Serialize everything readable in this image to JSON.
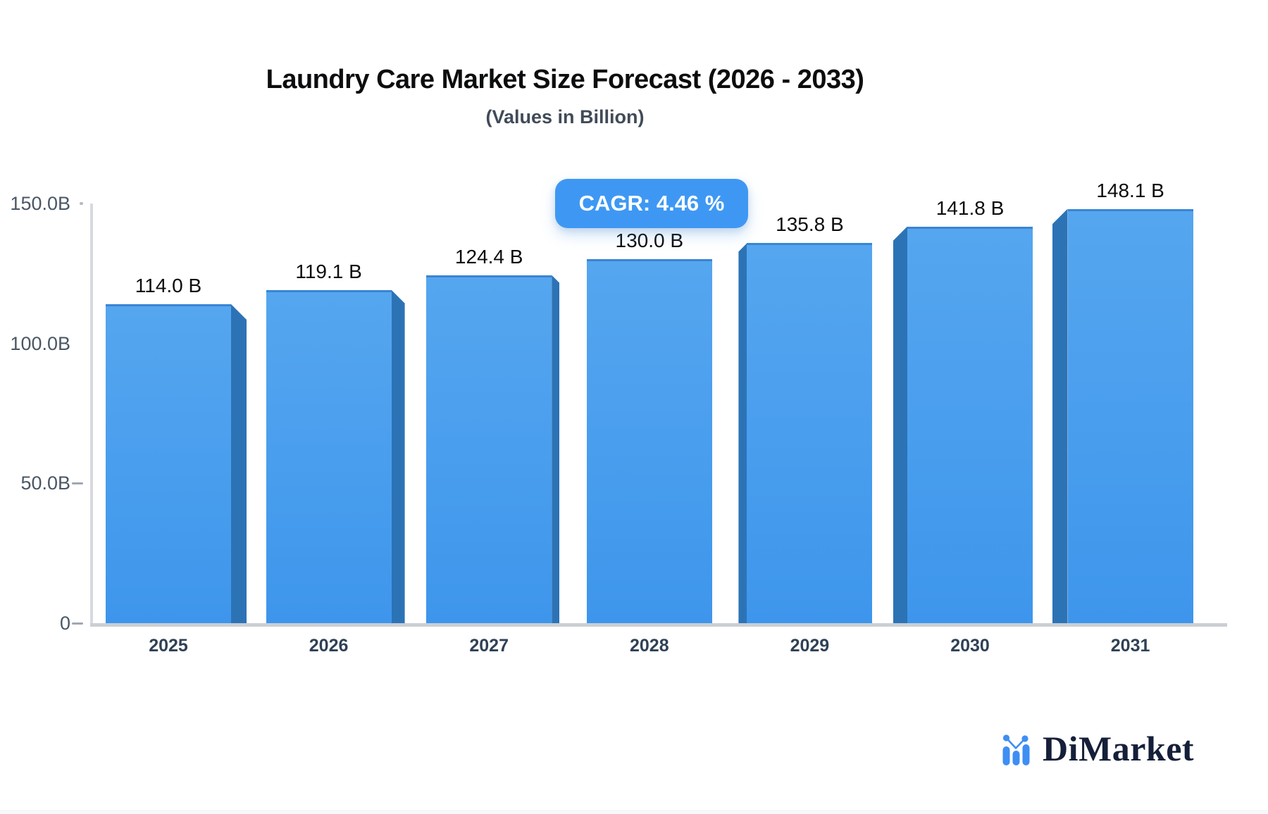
{
  "header": {
    "title": "Laundry Care Market Size Forecast (2026 - 2033)",
    "subtitle": "(Values in Billion)"
  },
  "badge": {
    "text": "CAGR: 4.46 %"
  },
  "chart_data": {
    "type": "bar",
    "title": "Laundry Care Market Size Forecast (2026 - 2033)",
    "subtitle": "(Values in Billion)",
    "categories": [
      "2025",
      "2026",
      "2027",
      "2028",
      "2029",
      "2030",
      "2031"
    ],
    "values": [
      114.0,
      119.1,
      124.4,
      130.0,
      135.8,
      141.8,
      148.1
    ],
    "bar_labels": [
      "114.0 B",
      "119.1 B",
      "124.4 B",
      "130.0 B",
      "135.8 B",
      "141.8 B",
      "148.1 B"
    ],
    "cagr_annotation": "CAGR: 4.46 %",
    "xlabel": "",
    "ylabel": "",
    "ylim": [
      0,
      150
    ],
    "yticks": [
      {
        "label": "150.0B",
        "value": 150
      },
      {
        "label": "100.0B",
        "value": 100
      },
      {
        "label": "50.0B",
        "value": 50
      },
      {
        "label": "0",
        "value": 0
      }
    ],
    "grid": false,
    "legend": false,
    "colors": {
      "bar_top": "#55a6ef",
      "bar_bottom": "#3e96ec",
      "bar_side_3d": "#2c73b6",
      "bar_top_edge": "#3a85d4",
      "badge_bg": "#3e98f3",
      "axis_line": "#d6dade"
    }
  },
  "watermark": {
    "text": "DiMarket",
    "icon": "mini-bar-chart-icon",
    "icon_color": "#3e8ef3",
    "text_color": "#151f39"
  }
}
